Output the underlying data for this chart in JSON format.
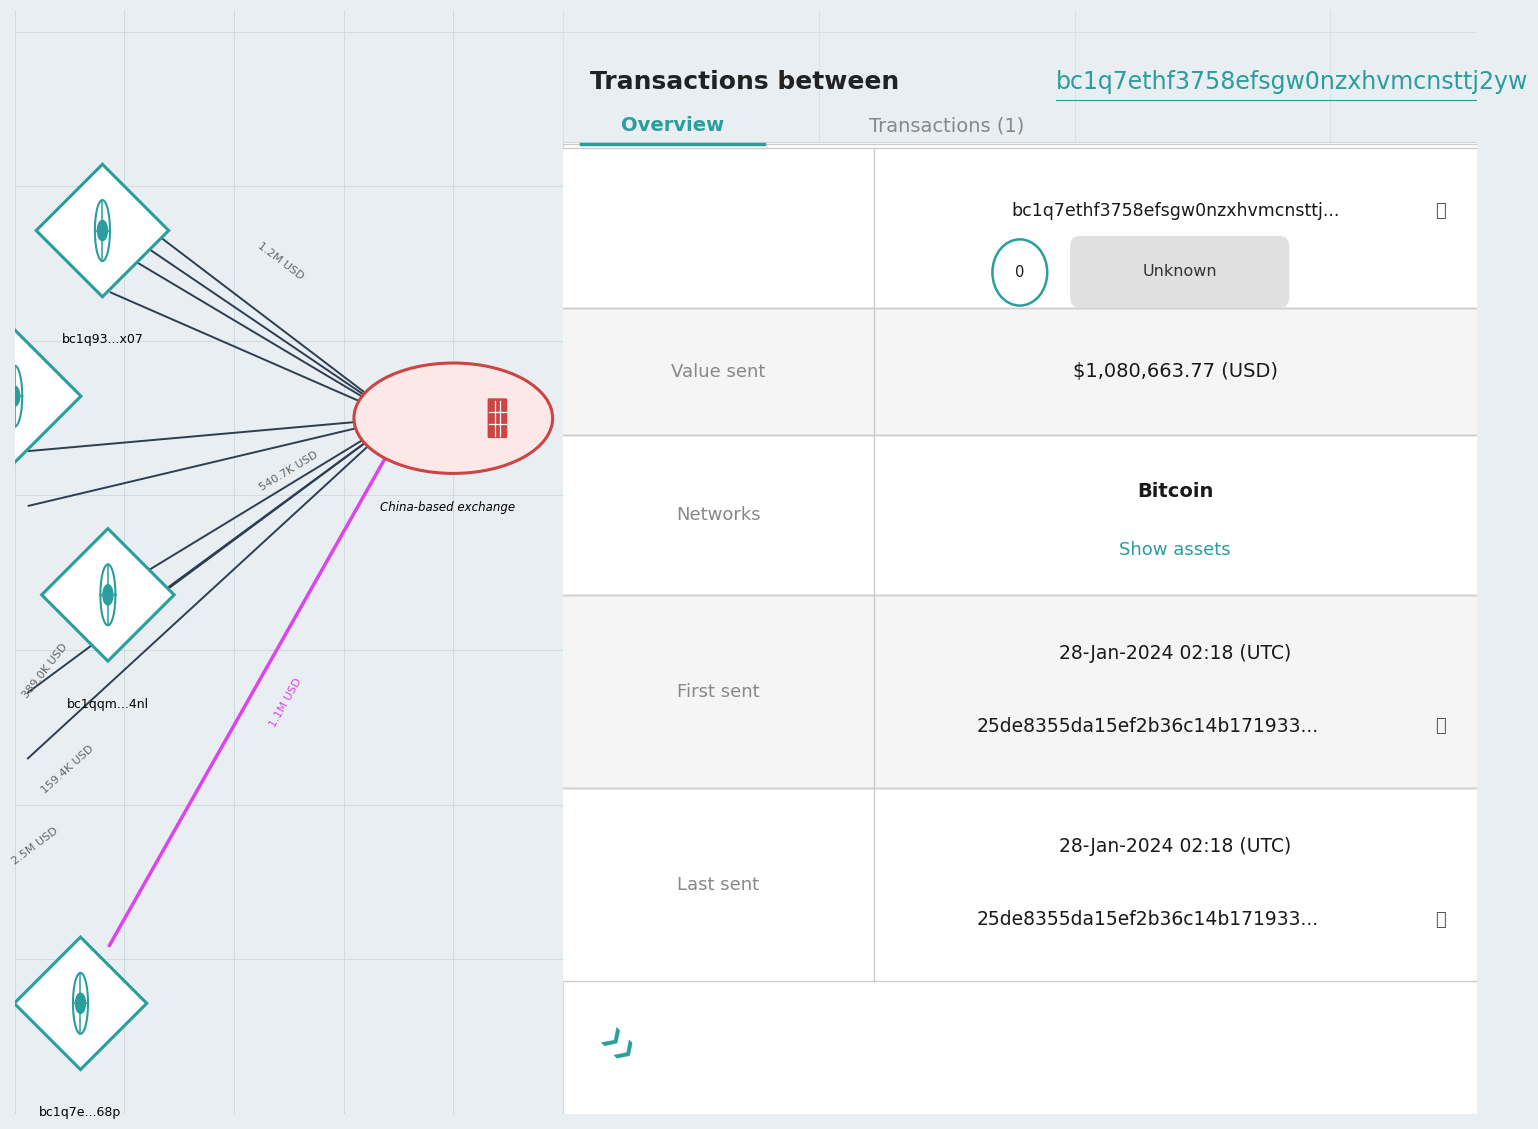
{
  "bg_left": "#e8eef2",
  "bg_right": "#ffffff",
  "grid_color": "#d0dce0",
  "teal_color": "#2a9d9d",
  "dark_node_color": "#2c3e50",
  "pink_arrow_color": "#dd44ee",
  "node_border_color": "#2a9d9d",
  "exchange_fill": "#fde8e8",
  "exchange_border": "#cc4444",
  "exchange_icon_color": "#cc4444",
  "title_text": "Transactions between",
  "title_link": "bc1q7ethf3758efsgw0nzxhvmcnsttj2yw",
  "tab_overview": "Overview",
  "tab_transactions": "Transactions (1)",
  "address_display": "bc1q7ethf3758efsgw0nzxhvmcnsttj...",
  "badge_0": "0",
  "badge_unknown": "Unknown",
  "row1_label": "Value sent",
  "row1_value": "$1,080,663.77 (USD)",
  "row2_label": "Networks",
  "row2_value1": "Bitcoin",
  "row2_value2": "Show assets",
  "row3_label": "First sent",
  "row3_value1": "28-Jan-2024 02:18 (UTC)",
  "row3_value2": "25de8355da15ef2b36c14b171933...",
  "row4_label": "Last sent",
  "row4_value1": "28-Jan-2024 02:18 (UTC)",
  "row4_value2": "25de8355da15ef2b36c14b171933...",
  "node_top_label": "bc1q93...x07",
  "node_mid_label": "bc1qqm...4nl",
  "node_bot_label": "bc1q7e...68p",
  "exchange_label": "China-based exchange",
  "panel_split": 0.375
}
